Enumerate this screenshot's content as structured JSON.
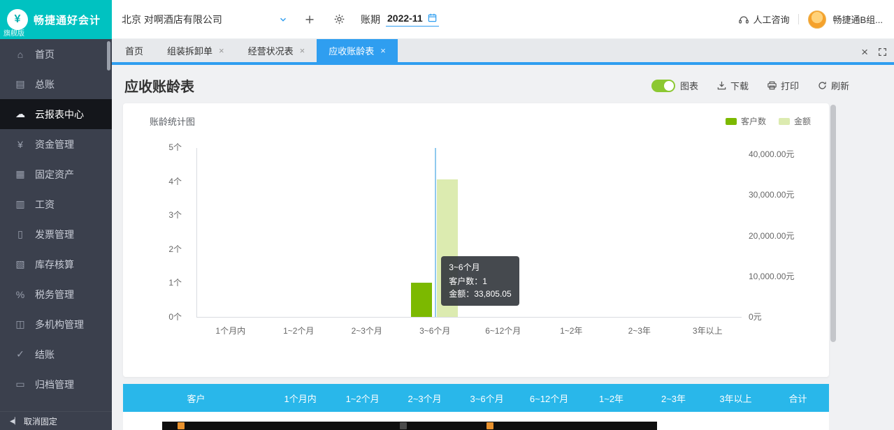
{
  "colors": {
    "brand_teal": "#00c2c1",
    "accent_blue": "#2f9ef0",
    "table_header_cyan": "#29b7ea",
    "toggle_green": "#8cc832",
    "customers_bar": "#7cb900",
    "amount_bar": "#dcebb0"
  },
  "brand": {
    "name": "畅捷通好会计",
    "edition": "旗舰版"
  },
  "header": {
    "company": "北京 对啊酒店有限公司",
    "period_label": "账期",
    "period_value": "2022-11",
    "support_label": "人工咨询",
    "user_name": "畅捷通B组..."
  },
  "sidebar": {
    "items": [
      {
        "name": "home",
        "label": "首页",
        "icon": "home-icon",
        "active": false
      },
      {
        "name": "general-ledger",
        "label": "总账",
        "icon": "ledger-icon",
        "active": false
      },
      {
        "name": "cloud-reports",
        "label": "云报表中心",
        "icon": "cloud-report-icon",
        "active": true
      },
      {
        "name": "funds",
        "label": "资金管理",
        "icon": "funds-icon",
        "active": false
      },
      {
        "name": "fixed-assets",
        "label": "固定资产",
        "icon": "fixed-assets-icon",
        "active": false
      },
      {
        "name": "payroll",
        "label": "工资",
        "icon": "payroll-icon",
        "active": false
      },
      {
        "name": "invoices",
        "label": "发票管理",
        "icon": "invoice-icon",
        "active": false
      },
      {
        "name": "inventory",
        "label": "库存核算",
        "icon": "inventory-icon",
        "active": false
      },
      {
        "name": "tax",
        "label": "税务管理",
        "icon": "tax-icon",
        "active": false
      },
      {
        "name": "multi-org",
        "label": "多机构管理",
        "icon": "multi-org-icon",
        "active": false
      },
      {
        "name": "closing",
        "label": "结账",
        "icon": "closing-icon",
        "active": false
      },
      {
        "name": "archive",
        "label": "归档管理",
        "icon": "archive-icon",
        "active": false
      }
    ],
    "unpin_label": "取消固定"
  },
  "tabs": [
    {
      "name": "home",
      "label": "首页",
      "closable": false,
      "active": false
    },
    {
      "name": "assembly-order",
      "label": "组装拆卸单",
      "closable": true,
      "active": false
    },
    {
      "name": "operating-report",
      "label": "经营状况表",
      "closable": true,
      "active": false
    },
    {
      "name": "ar-aging-report",
      "label": "应收账龄表",
      "closable": true,
      "active": true
    }
  ],
  "toolbar": {
    "page_title": "应收账龄表",
    "chart_toggle_label": "图表",
    "download_label": "下载",
    "print_label": "打印",
    "refresh_label": "刷新"
  },
  "chart": {
    "title": "账龄统计图"
  },
  "chart_data": {
    "type": "bar",
    "title": "账龄统计图",
    "categories": [
      "1个月内",
      "1~2个月",
      "2~3个月",
      "3~6个月",
      "6~12个月",
      "1~2年",
      "2~3年",
      "3年以上"
    ],
    "series": [
      {
        "name": "客户数",
        "axis": "left",
        "color": "#7cb900",
        "values": [
          0,
          0,
          0,
          1,
          0,
          0,
          0,
          0
        ]
      },
      {
        "name": "金额",
        "axis": "right",
        "color": "#dcebb0",
        "values": [
          0,
          0,
          0,
          33805.05,
          0,
          0,
          0,
          0
        ]
      }
    ],
    "left_axis": {
      "ticks": [
        "0个",
        "1个",
        "2个",
        "3个",
        "4个",
        "5个"
      ],
      "max": 5
    },
    "right_axis": {
      "ticks": [
        "0元",
        "10,000.00元",
        "20,000.00元",
        "30,000.00元",
        "40,000.00元"
      ],
      "max": 40000
    },
    "tooltip": {
      "title": "3~6个月",
      "lines": [
        "客户数：1",
        "金额：33,805.05"
      ]
    },
    "legend_position": "top-right",
    "grid": false
  },
  "table": {
    "headers": [
      "客户",
      "1个月内",
      "1~2个月",
      "2~3个月",
      "3~6个月",
      "6~12个月",
      "1~2年",
      "2~3年",
      "3年以上",
      "合计"
    ]
  },
  "taskbar": {
    "icons": [
      {
        "name": "taskbar-app-icon-1",
        "color": "#e8912d"
      },
      {
        "name": "taskbar-app-icon-2",
        "color": "#4a4a4a"
      },
      {
        "name": "taskbar-app-icon-3",
        "color": "#e8912d"
      }
    ]
  }
}
